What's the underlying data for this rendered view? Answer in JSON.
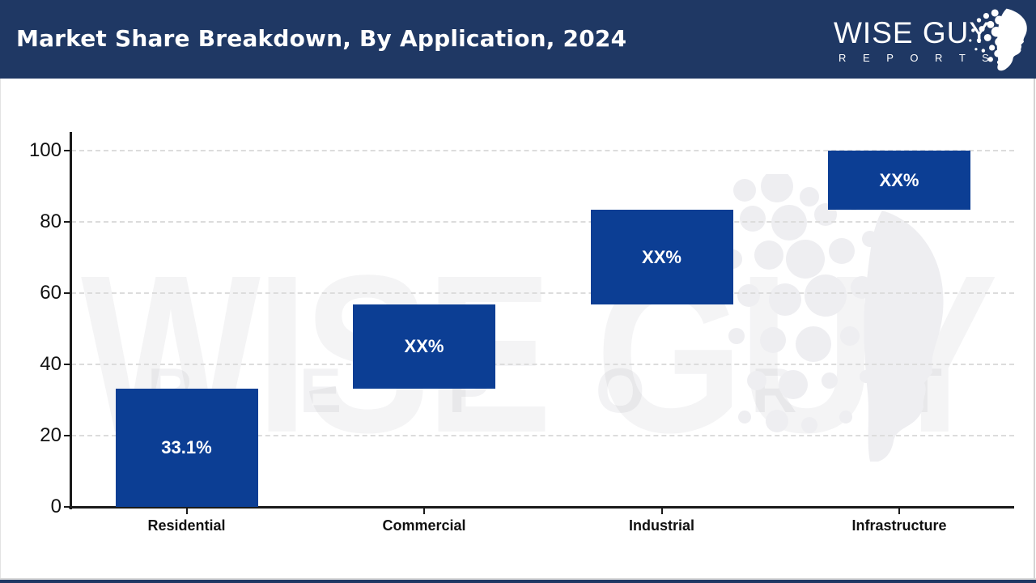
{
  "header": {
    "title": "Market Share Breakdown, By Application, 2024",
    "bg_color": "#1f3864",
    "logo": {
      "primary": "WISE GUY",
      "secondary": "R E P O R T S"
    }
  },
  "watermark": {
    "primary": "WISE GUY",
    "secondary": "R E P O R T S"
  },
  "chart_data": {
    "type": "bar",
    "variant": "waterfall",
    "title": "Market Share Breakdown, By Application, 2024",
    "xlabel": "",
    "ylabel": "",
    "categories": [
      "Residential",
      "Commercial",
      "Industrial",
      "Infrastructure"
    ],
    "segments": [
      {
        "category": "Residential",
        "start": 0,
        "end": 33.1,
        "label": "33.1%"
      },
      {
        "category": "Commercial",
        "start": 33.1,
        "end": 56.8,
        "label": "XX%"
      },
      {
        "category": "Industrial",
        "start": 56.8,
        "end": 83.3,
        "label": "XX%"
      },
      {
        "category": "Infrastructure",
        "start": 83.3,
        "end": 100,
        "label": "XX%"
      }
    ],
    "yticks": [
      0,
      20,
      40,
      60,
      80,
      100
    ],
    "ylim": [
      0,
      105
    ],
    "grid": "horizontal-dashed",
    "legend": "none",
    "bar_color": "#0c3e94",
    "bar_label_color": "#ffffff",
    "axis_color": "#1a1a1a",
    "gridline_color": "#dcdcdc"
  }
}
